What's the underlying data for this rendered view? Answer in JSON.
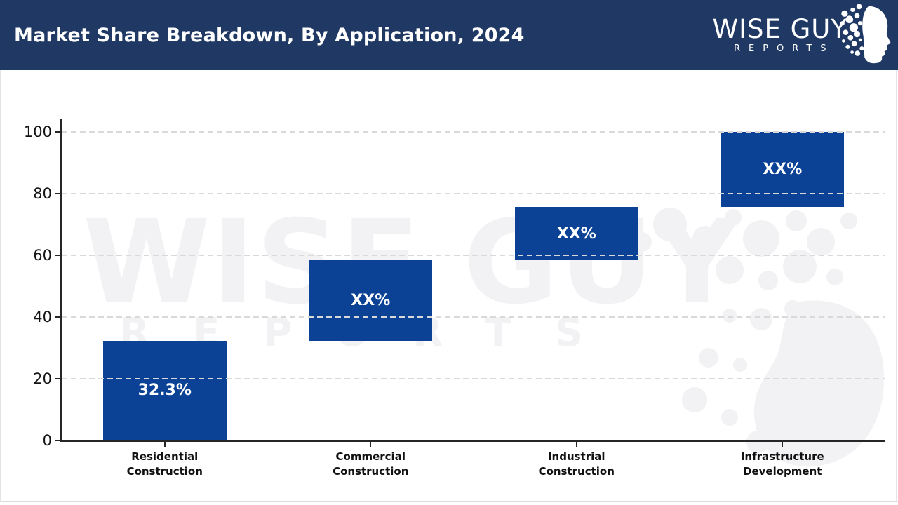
{
  "logo": {
    "name": "WISE GUY",
    "subname": "REPORTS"
  },
  "watermark": {
    "line1": "WISE GUY",
    "line2": "REPORTS"
  },
  "chart_data": {
    "type": "bar",
    "subtype": "floating-waterfall",
    "title": "Market Share Breakdown, By Application, 2024",
    "categories": [
      "Residential\nConstruction",
      "Commercial\nConstruction",
      "Industrial\nConstruction",
      "Infrastructure\nDevelopment"
    ],
    "bars": [
      {
        "category": "Residential Construction",
        "start": 0,
        "end": 32.3,
        "label": "32.3%"
      },
      {
        "category": "Commercial Construction",
        "start": 32.3,
        "end": 58.4,
        "label": "XX%"
      },
      {
        "category": "Industrial Construction",
        "start": 58.4,
        "end": 75.6,
        "label": "XX%"
      },
      {
        "category": "Infrastructure Development",
        "start": 75.6,
        "end": 100,
        "label": "XX%"
      }
    ],
    "ylim": [
      0,
      100
    ],
    "yticks": [
      0,
      20,
      40,
      60,
      80,
      100
    ],
    "grid": {
      "horizontal": true,
      "style": "dashed",
      "color": "#d9d9d9"
    },
    "bar_color": "#0b4295",
    "bar_label_color": "#ffffff",
    "axis_color": "#262626",
    "header_bg": "#1f3864",
    "legend": null
  }
}
